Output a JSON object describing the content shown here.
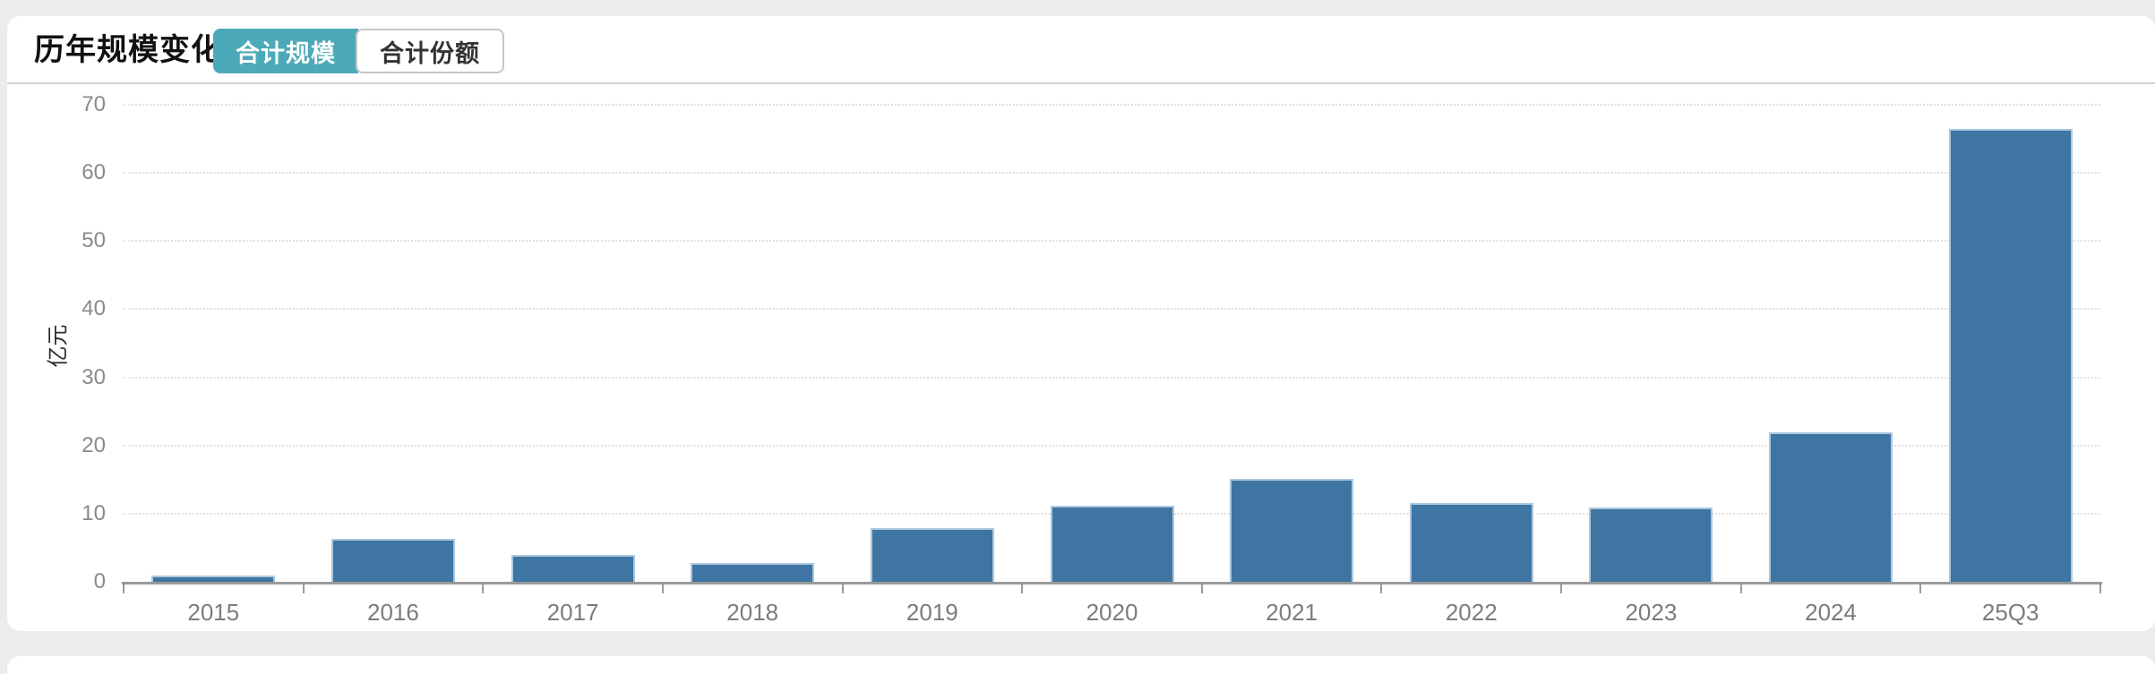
{
  "page": {
    "background_color": "#ececec",
    "card_color": "#ffffff"
  },
  "header": {
    "title": "历年规模变化",
    "tabs": [
      {
        "label": "合计规模",
        "active": true
      },
      {
        "label": "合计份额",
        "active": false
      }
    ],
    "active_tab_color": "#4BA9B8",
    "active_tab_text_color": "#ffffff"
  },
  "chart_data": {
    "type": "bar",
    "title": "历年规模变化",
    "categories": [
      "2015",
      "2016",
      "2017",
      "2018",
      "2019",
      "2020",
      "2021",
      "2022",
      "2023",
      "2024",
      "25Q3"
    ],
    "values": [
      0.9,
      6.3,
      4.0,
      2.7,
      7.9,
      11.2,
      15.1,
      11.6,
      10.9,
      21.9,
      66.4
    ],
    "series_name": "合计规模",
    "xlabel": "",
    "ylabel": "亿元",
    "ylim": [
      0,
      70
    ],
    "ytick_step": 10,
    "yticks": [
      0,
      10,
      20,
      30,
      40,
      50,
      60,
      70
    ],
    "grid": "horizontal dotted",
    "legend": "none",
    "bar_color": "#3e75a3",
    "bar_border_color": "#b7d1e5",
    "axis_line_color": "#9a9a9a",
    "tick_label_color": "#8a8a8a"
  }
}
